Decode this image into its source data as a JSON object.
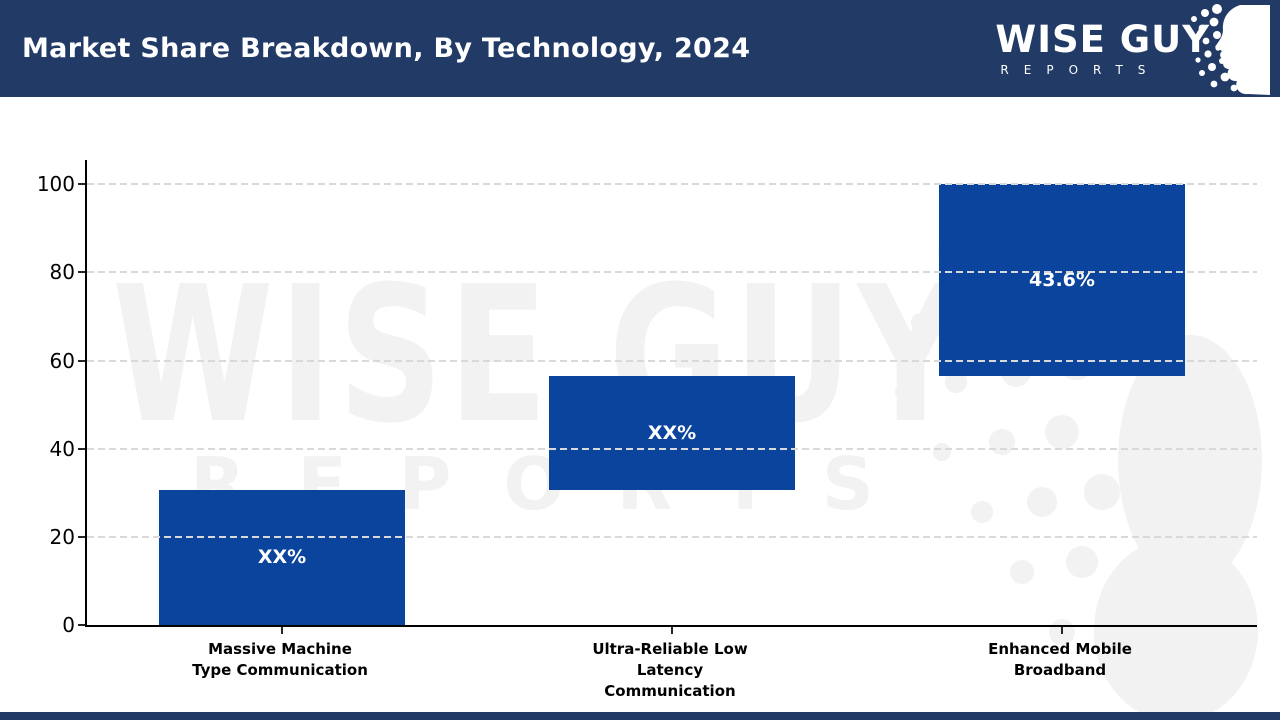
{
  "header": {
    "title": "Market Share Breakdown, By Technology, 2024",
    "bg_color": "#213a66",
    "logo": {
      "name": "WISE GUY",
      "sub": "REPORTS"
    }
  },
  "watermark": {
    "line1": "WISE GUY",
    "line2": "REPORTS"
  },
  "chart_data": {
    "type": "bar",
    "variant": "waterfall-stacked-percent",
    "title": "Market Share Breakdown, By Technology, 2024",
    "categories": [
      {
        "lines": [
          "Massive Machine",
          "Type Communication"
        ]
      },
      {
        "lines": [
          "Ultra-Reliable Low",
          "Latency",
          "Communication"
        ]
      },
      {
        "lines": [
          "Enhanced Mobile",
          "Broadband"
        ]
      }
    ],
    "bars": [
      {
        "label": "XX%",
        "start": 0,
        "end": 30.7
      },
      {
        "label": "XX%",
        "start": 30.7,
        "end": 56.4
      },
      {
        "label": "43.6%",
        "start": 56.4,
        "end": 100,
        "value": 43.6
      }
    ],
    "yticks": [
      0,
      20,
      40,
      60,
      80,
      100
    ],
    "ylim": [
      0,
      105.5
    ],
    "grid": true,
    "legend": false,
    "bar_color": "#0a449c",
    "bar_label_color": "#ffffff",
    "grid_color": "#d9d9d9",
    "axis_color": "#000000"
  }
}
